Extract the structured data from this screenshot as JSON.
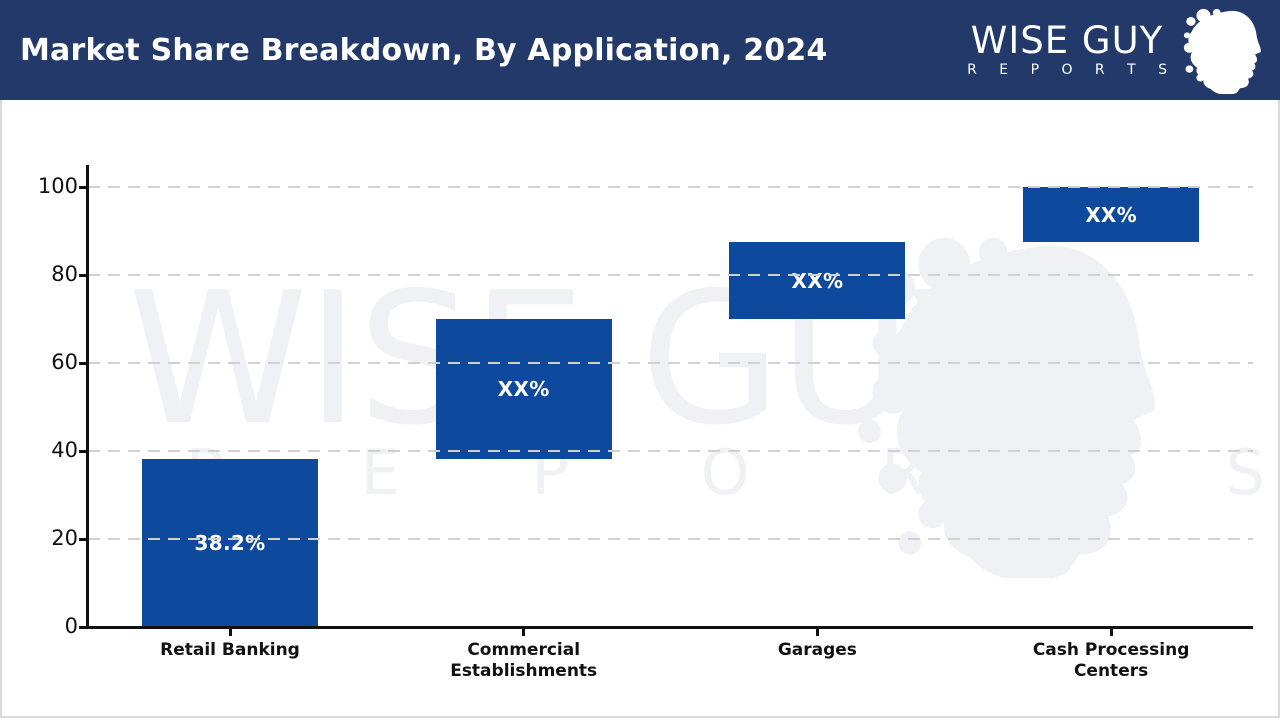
{
  "header": {
    "title": "Market Share Breakdown, By Application, 2024",
    "logo": {
      "line1": "WISE GUY",
      "line2": "R E P O R T S"
    }
  },
  "watermark": {
    "line1": "WISE GUY",
    "line2": "R E P O R T S"
  },
  "colors": {
    "header_bg": "#22396a",
    "bar": "#0d4a9e",
    "bar_label": "#ffffff",
    "gridline": "#d0d0d0",
    "axis": "#111111",
    "watermark": "#f0f1f4"
  },
  "chart_data": {
    "type": "bar",
    "subtype": "waterfall",
    "title": "Market Share Breakdown, By Application, 2024",
    "categories": [
      "Retail Banking",
      "Commercial Establishments",
      "Garages",
      "Cash Processing Centers"
    ],
    "segments": [
      {
        "category": "Retail Banking",
        "start": 0,
        "end": 38.2,
        "label": "38.2%"
      },
      {
        "category": "Commercial Establishments",
        "start": 38.2,
        "end": 70,
        "label": "XX%"
      },
      {
        "category": "Garages",
        "start": 70,
        "end": 87.5,
        "label": "XX%"
      },
      {
        "category": "Cash Processing Centers",
        "start": 87.5,
        "end": 100,
        "label": "XX%"
      }
    ],
    "y_ticks": [
      0,
      20,
      40,
      60,
      80,
      100
    ],
    "ylim": [
      0,
      100
    ],
    "xlabel": "",
    "ylabel": "",
    "grid": "horizontal-dashed",
    "legend": "none"
  }
}
